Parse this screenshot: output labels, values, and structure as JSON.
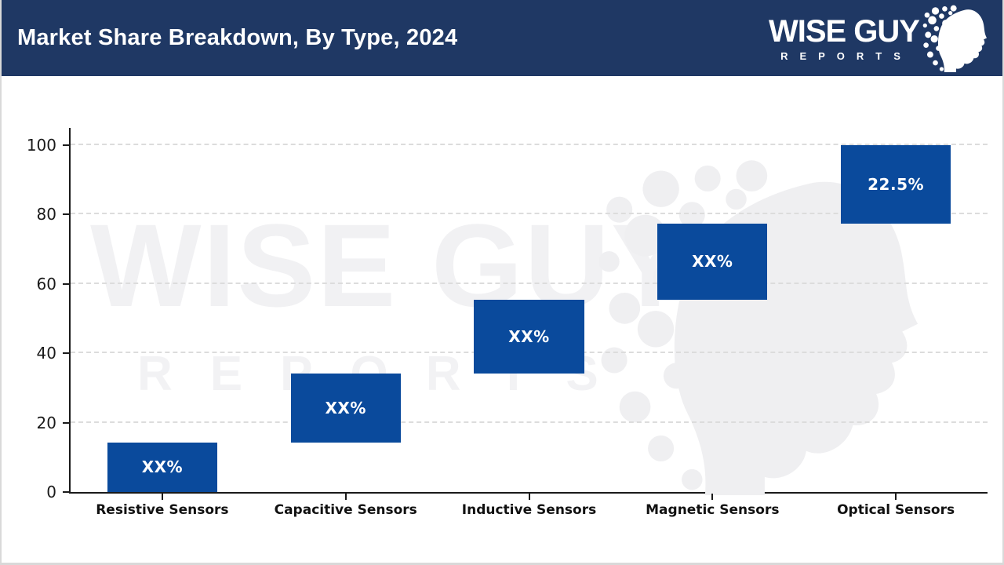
{
  "header": {
    "title": "Market Share Breakdown, By Type, 2024",
    "background_color": "#1F3864",
    "logo": {
      "wordmark": "WISE GUY",
      "reports": "REPORTS"
    }
  },
  "watermark": {
    "line1": "WISE GUY",
    "line2": "REPORTS"
  },
  "chart_data": {
    "type": "bar",
    "subtype": "waterfall",
    "title": "Market Share Breakdown, By Type, 2024",
    "categories": [
      "Resistive Sensors",
      "Capacitive Sensors",
      "Inductive Sensors",
      "Magnetic Sensors",
      "Optical Sensors"
    ],
    "bars": [
      {
        "category": "Resistive Sensors",
        "start": 0,
        "end": 14.3,
        "label": "XX%"
      },
      {
        "category": "Capacitive Sensors",
        "start": 14.3,
        "end": 34.1,
        "label": "XX%"
      },
      {
        "category": "Inductive Sensors",
        "start": 34.1,
        "end": 55.4,
        "label": "XX%"
      },
      {
        "category": "Magnetic Sensors",
        "start": 55.4,
        "end": 77.5,
        "label": "XX%"
      },
      {
        "category": "Optical Sensors",
        "start": 77.5,
        "end": 100,
        "label": "22.5%"
      }
    ],
    "xlabel": "",
    "ylabel": "",
    "yticks": [
      0,
      20,
      40,
      60,
      80,
      100
    ],
    "ylim": [
      0,
      105
    ],
    "grid": "horizontal-dashed",
    "legend": "none",
    "bar_color": "#0A4A9C",
    "grid_color": "#DCDCDC",
    "axis_color": "#1A1A1A",
    "bar_label_color": "#FFFFFF"
  }
}
